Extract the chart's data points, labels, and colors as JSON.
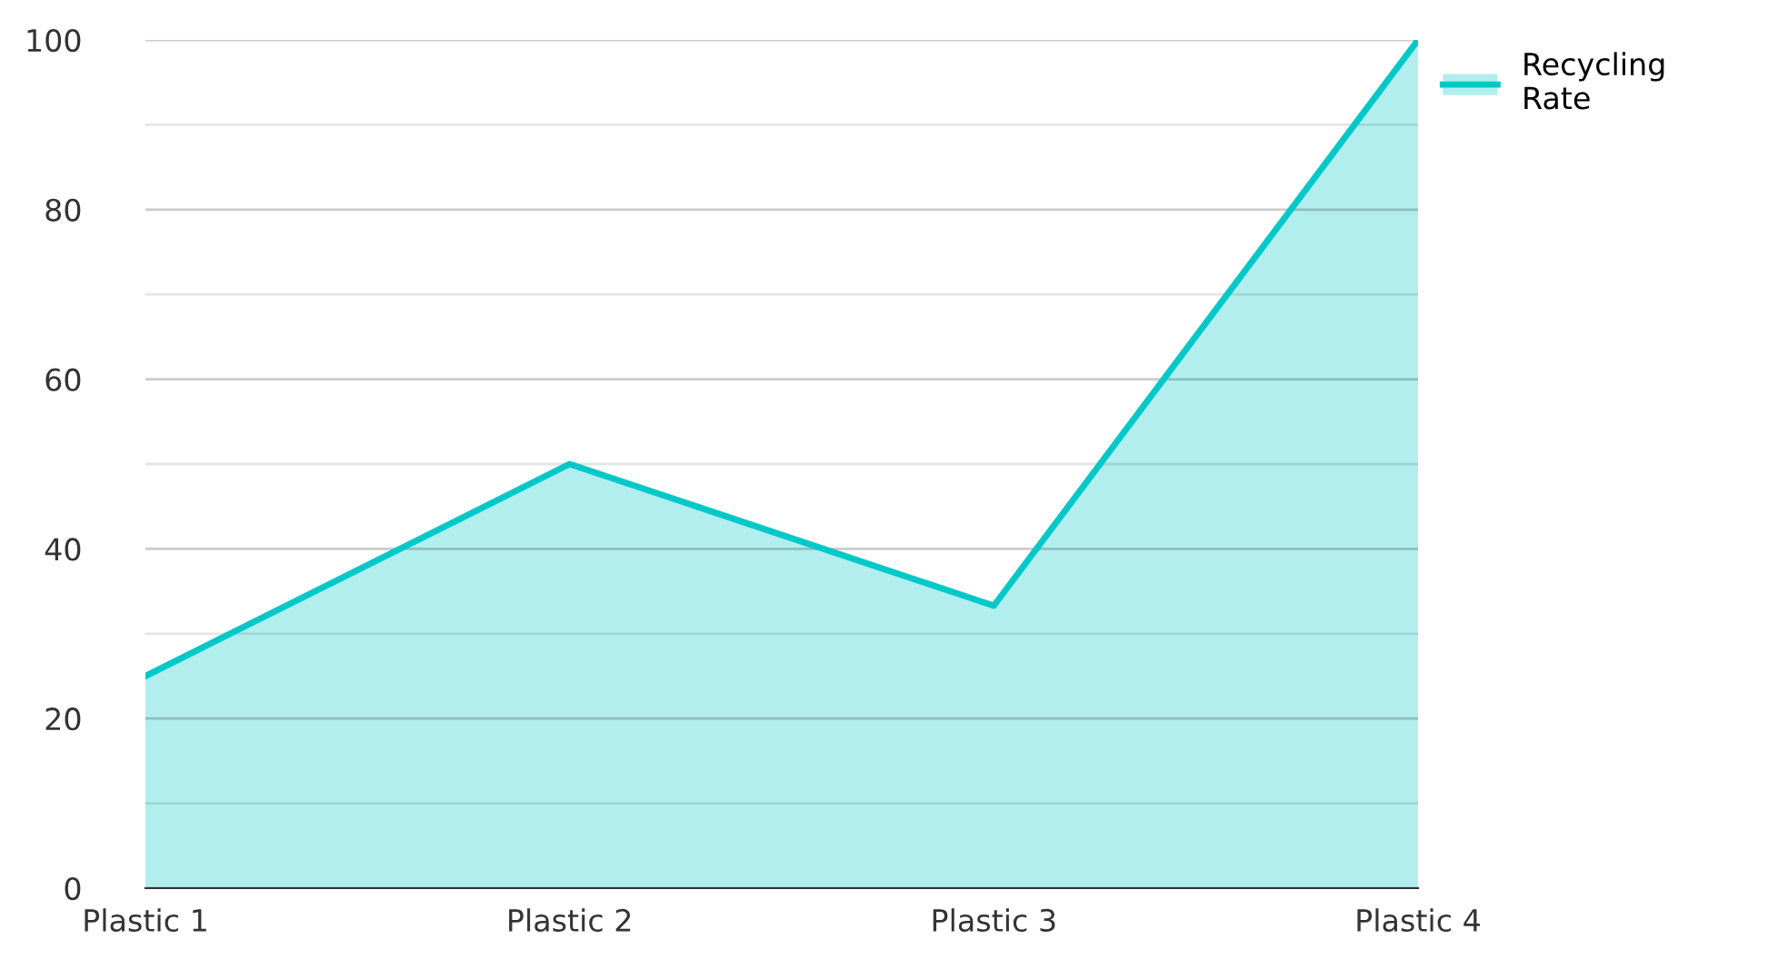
{
  "chart_data": {
    "type": "area",
    "categories": [
      "Plastic 1",
      "Plastic 2",
      "Plastic 3",
      "Plastic 4"
    ],
    "series": [
      {
        "name": "Recycling Rate",
        "color": "#00c8c8",
        "values": [
          25,
          50,
          33.3,
          100
        ]
      }
    ],
    "ylim": [
      0,
      100
    ],
    "yticks": [
      0,
      {
        "value": 10,
        "label": null
      },
      20,
      {
        "value": 30,
        "label": null
      },
      40,
      {
        "value": 50,
        "label": null
      },
      60,
      {
        "value": 70,
        "label": null
      },
      80,
      {
        "value": 90,
        "label": null
      },
      100
    ],
    "grid": "y",
    "legend": "top right"
  }
}
